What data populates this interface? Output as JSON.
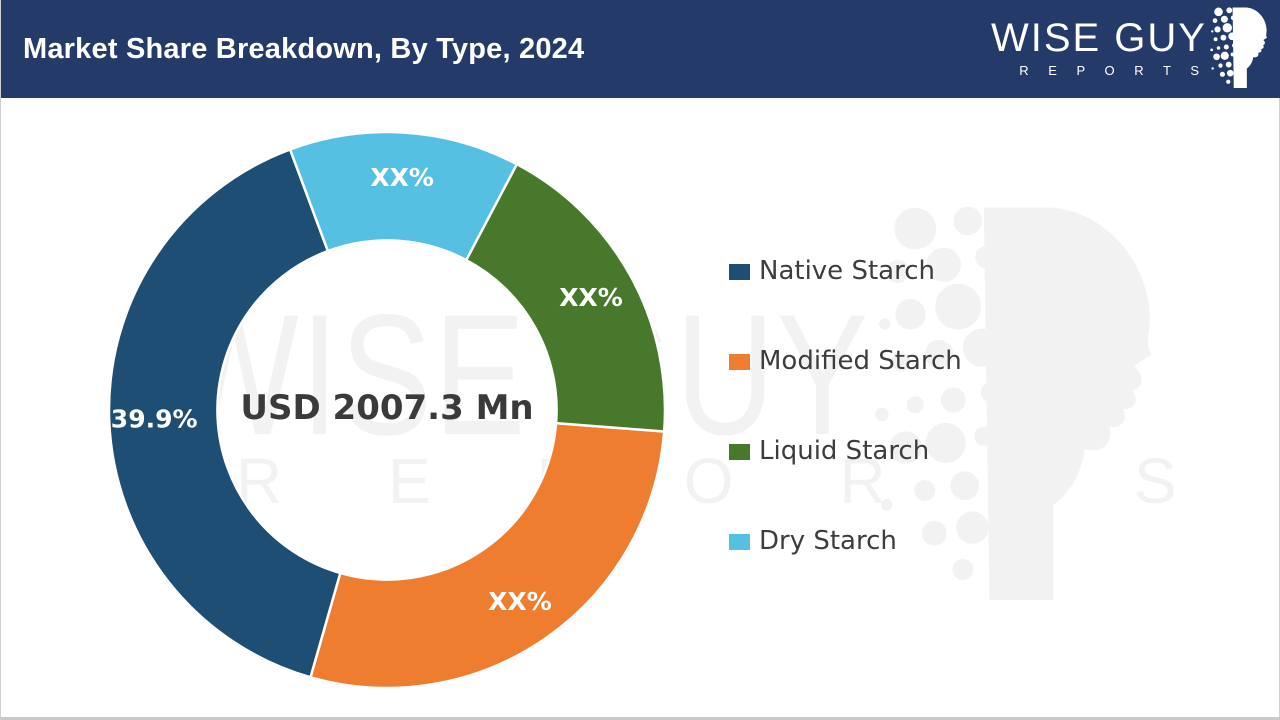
{
  "header": {
    "title": "Market Share Breakdown, By Type, 2024",
    "background_color": "#243a68",
    "logo": {
      "line1": "WISE GUY",
      "line2": "R E P O R T S"
    }
  },
  "chart_data": {
    "type": "pie",
    "subtype": "donut",
    "title": "Market Share Breakdown, By Type, 2024",
    "center_label": "USD 2007.3 Mn",
    "start_angle_deg": 110.4,
    "direction": "counterclockwise",
    "inner_radius_ratio": 0.61,
    "legend_position": "right",
    "segments": [
      {
        "label": "Native Starch",
        "value_pct": 39.9,
        "display_label": "39.9%",
        "color": "#1f4e74"
      },
      {
        "label": "Modified Starch",
        "value_pct": 28.2,
        "display_label": "XX%",
        "color": "#ee7d30"
      },
      {
        "label": "Liquid Starch",
        "value_pct": 18.5,
        "display_label": "XX%",
        "color": "#47782b"
      },
      {
        "label": "Dry Starch",
        "value_pct": 13.4,
        "display_label": "XX%",
        "color": "#56c0e2"
      }
    ]
  },
  "watermark": {
    "line1": "WISE GUY",
    "line2": "R E P O R T S",
    "color": "#f2f2f2"
  }
}
